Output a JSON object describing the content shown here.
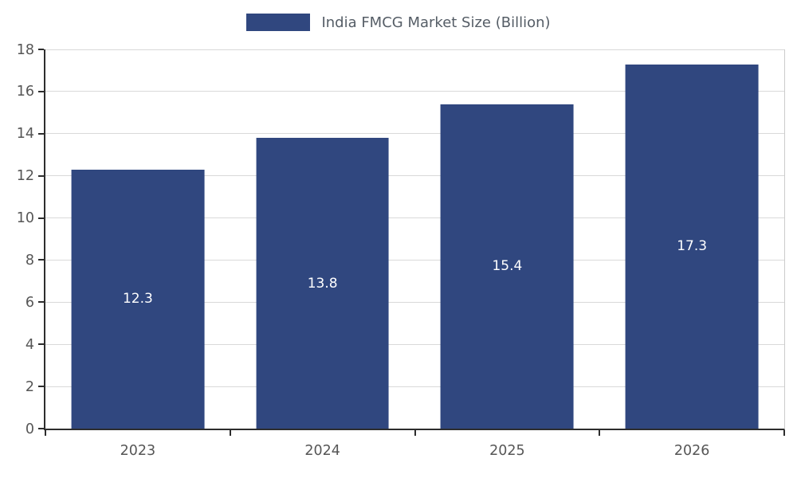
{
  "chart": {
    "title": "India FMCG Market Size (Billion)"
  },
  "chart_data": {
    "type": "bar",
    "title": "India FMCG Market Size (Billion)",
    "categories": [
      "2023",
      "2024",
      "2025",
      "2026"
    ],
    "values": [
      12.3,
      13.8,
      15.4,
      17.3
    ],
    "xlabel": "",
    "ylabel": "",
    "ylim": [
      0,
      18
    ],
    "ytick_step": 2,
    "grid": true,
    "legend_position": "top-center",
    "colors": {
      "bar": "#30477F",
      "value_label": "#ffffff",
      "tick_label": "#565656",
      "title": "#555d66",
      "gridline": "#d9d9d9",
      "axis": "#2d2d2d"
    }
  }
}
